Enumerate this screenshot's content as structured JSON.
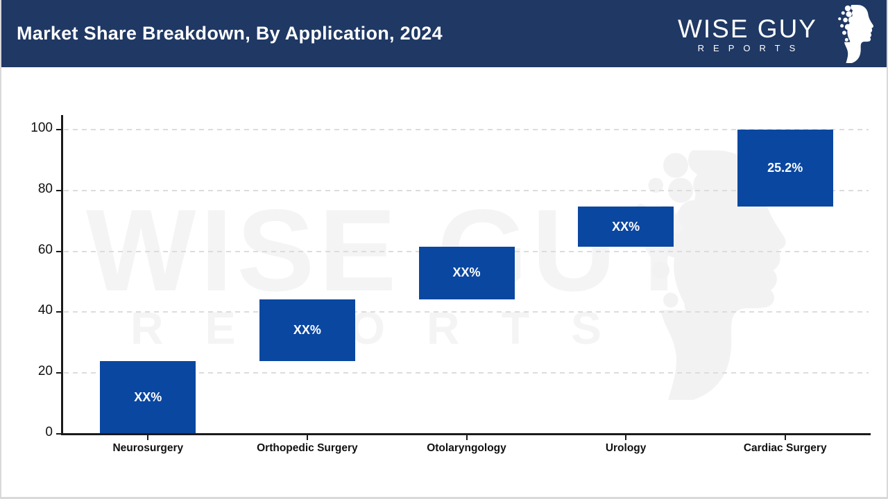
{
  "header": {
    "title": "Market Share Breakdown, By Application, 2024",
    "background_color": "#1f3864",
    "logo": {
      "line1": "WISE GUY",
      "line2": "REPORTS"
    }
  },
  "watermark": {
    "line1": "WISE GUY",
    "line2": "REPORTS"
  },
  "chart_data": {
    "type": "bar",
    "variant": "floating-waterfall-segments",
    "title": "Market Share Breakdown, By Application, 2024",
    "xlabel": "",
    "ylabel": "",
    "ylim": [
      0,
      105
    ],
    "yticks": [
      0,
      20,
      40,
      60,
      80,
      100
    ],
    "grid": "horizontal dashed",
    "legend": "none",
    "bar_color": "#0a47a0",
    "bar_label_color": "#ffffff",
    "categories": [
      "Neurosurgery",
      "Orthopedic Surgery",
      "Otolaryngology",
      "Urology",
      "Cardiac Surgery"
    ],
    "bars": [
      {
        "category": "Neurosurgery",
        "start": 0,
        "end": 23.9,
        "height": 23.9,
        "label": "XX%"
      },
      {
        "category": "Orthopedic Surgery",
        "start": 23.9,
        "end": 44.3,
        "height": 20.4,
        "label": "XX%"
      },
      {
        "category": "Otolaryngology",
        "start": 44.3,
        "end": 61.4,
        "height": 17.1,
        "label": "XX%"
      },
      {
        "category": "Urology",
        "start": 61.4,
        "end": 74.8,
        "height": 13.4,
        "label": "XX%"
      },
      {
        "category": "Cardiac Surgery",
        "start": 74.8,
        "end": 100.0,
        "height": 25.2,
        "label": "25.2%"
      }
    ]
  }
}
